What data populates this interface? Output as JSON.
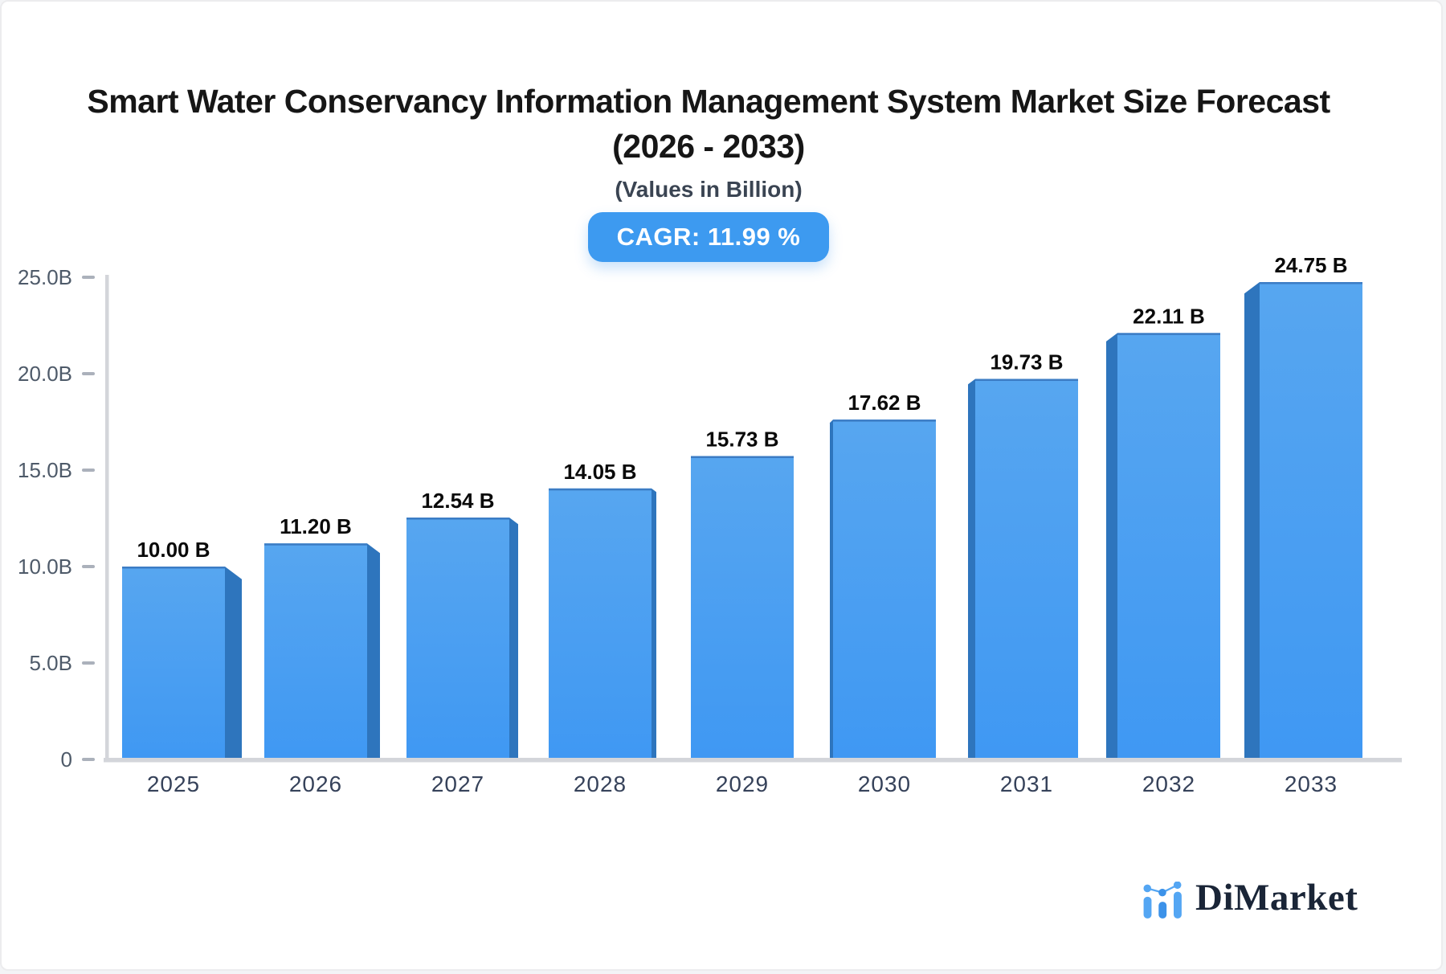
{
  "title": {
    "line1": "Smart Water Conservancy Information Management System Market Size Forecast",
    "line2": "(2026 - 2033)",
    "subtitle": "(Values in Billion)"
  },
  "badge": {
    "label": "CAGR: 11.99 %"
  },
  "chart_data": {
    "type": "bar",
    "title": "Smart Water Conservancy Information Management System Market Size Forecast (2026 - 2033)",
    "subtitle": "(Values in Billion)",
    "cagr_percent": 11.99,
    "categories": [
      "2025",
      "2026",
      "2027",
      "2028",
      "2029",
      "2030",
      "2031",
      "2032",
      "2033"
    ],
    "values": [
      10.0,
      11.2,
      12.54,
      14.05,
      15.73,
      17.62,
      19.73,
      22.11,
      24.75
    ],
    "value_labels": [
      "10.00 B",
      "11.20 B",
      "12.54 B",
      "14.05 B",
      "15.73 B",
      "17.62 B",
      "19.73 B",
      "22.11 B",
      "24.75 B"
    ],
    "unit": "Billion",
    "ylim": [
      0,
      25
    ],
    "y_ticks": [
      {
        "label": "25.0B",
        "value": 25
      },
      {
        "label": "20.0B",
        "value": 20
      },
      {
        "label": "15.0B",
        "value": 15
      },
      {
        "label": "10.0B",
        "value": 10
      },
      {
        "label": "5.0B",
        "value": 5
      },
      {
        "label": "0",
        "value": 0
      }
    ],
    "grid": false,
    "legend": false,
    "colors": {
      "bar_face_top": "#57a6f0",
      "bar_face_bottom": "#3f98f3",
      "bar_side": "#2e75bd",
      "bar_top_edge": "#3c7cc4",
      "axis_line": "#d3d5da",
      "tick_dash": "#abb1bb",
      "value_label": "#0a0a0a",
      "x_label": "#36425a",
      "y_label": "#4e5a69"
    }
  },
  "brand": {
    "name": "DiMarket",
    "accent": "#54a6f3",
    "accent_dark": "#3c92e9"
  }
}
